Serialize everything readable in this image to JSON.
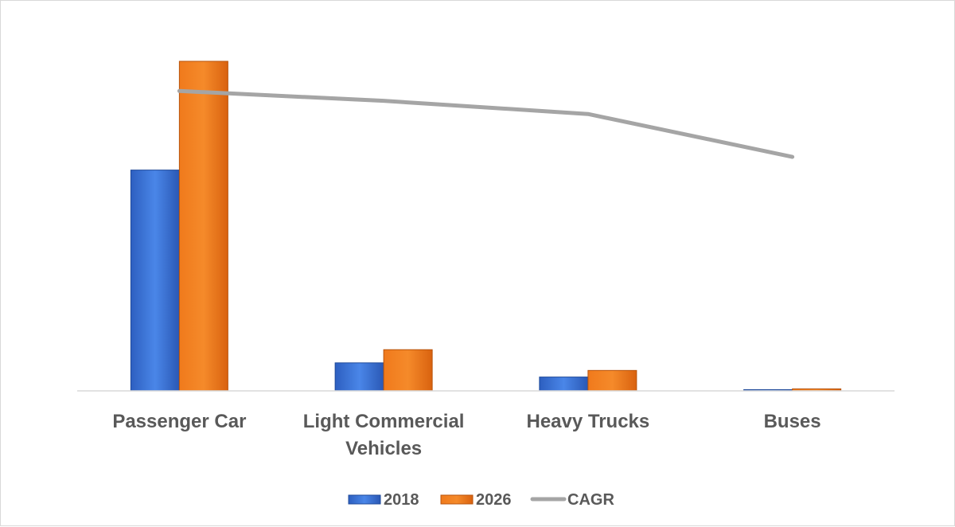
{
  "chart_data": {
    "type": "bar",
    "title": "",
    "xlabel": "",
    "ylabel": "",
    "categories": [
      [
        "Passenger Car"
      ],
      [
        "Light Commercial",
        "Vehicles"
      ],
      [
        "Heavy Trucks"
      ],
      [
        "Buses"
      ]
    ],
    "ylim": [
      0,
      100
    ],
    "cagr_range": [
      0,
      100
    ],
    "grid": false,
    "legend_position": "bottom",
    "series": [
      {
        "name": "2018",
        "kind": "bar",
        "color": "#4472C4",
        "values": [
          67,
          8.5,
          4.2,
          0.3
        ]
      },
      {
        "name": "2026",
        "kind": "bar",
        "color": "#ED7D31",
        "values": [
          100,
          12.5,
          6.2,
          0.6
        ]
      },
      {
        "name": "CAGR",
        "kind": "line",
        "color": "#A5A5A5",
        "values": [
          91,
          88,
          84,
          71
        ]
      }
    ]
  }
}
